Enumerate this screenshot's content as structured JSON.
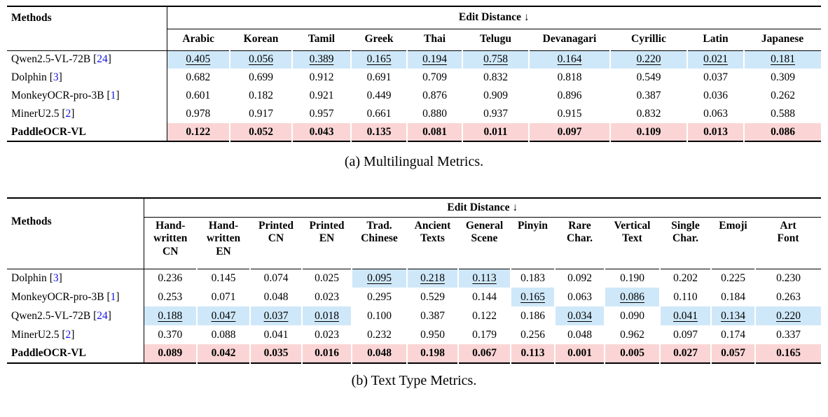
{
  "colors": {
    "second_best_bg": "#cfe8f9",
    "best_bg": "#fbd5d5",
    "citation": "#1212e8"
  },
  "tables": [
    {
      "caption": "(a) Multilingual Metrics.",
      "methods_header": "Methods",
      "group_header": "Edit Distance ↓",
      "columns": [
        [
          "Arabic"
        ],
        [
          "Korean"
        ],
        [
          "Tamil"
        ],
        [
          "Greek"
        ],
        [
          "Thai"
        ],
        [
          "Telugu"
        ],
        [
          "Devanagari"
        ],
        [
          "Cyrillic"
        ],
        [
          "Latin"
        ],
        [
          "Japanese"
        ]
      ],
      "rows": [
        {
          "method": "Qwen2.5-VL-72B",
          "cite": "24",
          "bold": false,
          "cells": [
            {
              "v": "0.405",
              "s": "2"
            },
            {
              "v": "0.056",
              "s": "2"
            },
            {
              "v": "0.389",
              "s": "2"
            },
            {
              "v": "0.165",
              "s": "2"
            },
            {
              "v": "0.194",
              "s": "2"
            },
            {
              "v": "0.758",
              "s": "2"
            },
            {
              "v": "0.164",
              "s": "2"
            },
            {
              "v": "0.220",
              "s": "2"
            },
            {
              "v": "0.021",
              "s": "2"
            },
            {
              "v": "0.181",
              "s": "2"
            }
          ]
        },
        {
          "method": "Dolphin",
          "cite": "3",
          "bold": false,
          "cells": [
            {
              "v": "0.682"
            },
            {
              "v": "0.699"
            },
            {
              "v": "0.912"
            },
            {
              "v": "0.691"
            },
            {
              "v": "0.709"
            },
            {
              "v": "0.832"
            },
            {
              "v": "0.818"
            },
            {
              "v": "0.549"
            },
            {
              "v": "0.037"
            },
            {
              "v": "0.309"
            }
          ]
        },
        {
          "method": "MonkeyOCR-pro-3B",
          "cite": "1",
          "bold": false,
          "cells": [
            {
              "v": "0.601"
            },
            {
              "v": "0.182"
            },
            {
              "v": "0.921"
            },
            {
              "v": "0.449"
            },
            {
              "v": "0.876"
            },
            {
              "v": "0.909"
            },
            {
              "v": "0.896"
            },
            {
              "v": "0.387"
            },
            {
              "v": "0.036"
            },
            {
              "v": "0.262"
            }
          ]
        },
        {
          "method": "MinerU2.5",
          "cite": "2",
          "bold": false,
          "cells": [
            {
              "v": "0.978"
            },
            {
              "v": "0.917"
            },
            {
              "v": "0.957"
            },
            {
              "v": "0.661"
            },
            {
              "v": "0.880"
            },
            {
              "v": "0.937"
            },
            {
              "v": "0.915"
            },
            {
              "v": "0.832"
            },
            {
              "v": "0.063"
            },
            {
              "v": "0.588"
            }
          ]
        },
        {
          "method": "PaddleOCR-VL",
          "cite": null,
          "bold": true,
          "cells": [
            {
              "v": "0.122",
              "s": "1"
            },
            {
              "v": "0.052",
              "s": "1"
            },
            {
              "v": "0.043",
              "s": "1"
            },
            {
              "v": "0.135",
              "s": "1"
            },
            {
              "v": "0.081",
              "s": "1"
            },
            {
              "v": "0.011",
              "s": "1"
            },
            {
              "v": "0.097",
              "s": "1"
            },
            {
              "v": "0.109",
              "s": "1"
            },
            {
              "v": "0.013",
              "s": "1"
            },
            {
              "v": "0.086",
              "s": "1"
            }
          ]
        }
      ]
    },
    {
      "caption": "(b) Text Type Metrics.",
      "methods_header": "Methods",
      "group_header": "Edit Distance ↓",
      "columns": [
        [
          "Hand-",
          "written",
          "CN"
        ],
        [
          "Hand-",
          "written",
          "EN"
        ],
        [
          "Printed",
          "CN"
        ],
        [
          "Printed",
          "EN"
        ],
        [
          "Trad.",
          "Chinese"
        ],
        [
          "Ancient",
          "Texts"
        ],
        [
          "General",
          "Scene"
        ],
        [
          "Pinyin"
        ],
        [
          "Rare",
          "Char."
        ],
        [
          "Vertical",
          "Text"
        ],
        [
          "Single",
          "Char."
        ],
        [
          "Emoji"
        ],
        [
          "Art",
          "Font"
        ]
      ],
      "rows": [
        {
          "method": "Dolphin",
          "cite": "3",
          "bold": false,
          "cells": [
            {
              "v": "0.236"
            },
            {
              "v": "0.145"
            },
            {
              "v": "0.074"
            },
            {
              "v": "0.025"
            },
            {
              "v": "0.095",
              "s": "2"
            },
            {
              "v": "0.218",
              "s": "2"
            },
            {
              "v": "0.113",
              "s": "2"
            },
            {
              "v": "0.183"
            },
            {
              "v": "0.092"
            },
            {
              "v": "0.190"
            },
            {
              "v": "0.202"
            },
            {
              "v": "0.225"
            },
            {
              "v": "0.230"
            }
          ]
        },
        {
          "method": "MonkeyOCR-pro-3B",
          "cite": "1",
          "bold": false,
          "cells": [
            {
              "v": "0.253"
            },
            {
              "v": "0.071"
            },
            {
              "v": "0.048"
            },
            {
              "v": "0.023"
            },
            {
              "v": "0.295"
            },
            {
              "v": "0.529"
            },
            {
              "v": "0.144"
            },
            {
              "v": "0.165",
              "s": "2"
            },
            {
              "v": "0.063"
            },
            {
              "v": "0.086",
              "s": "2"
            },
            {
              "v": "0.110"
            },
            {
              "v": "0.184"
            },
            {
              "v": "0.263"
            }
          ]
        },
        {
          "method": "Qwen2.5-VL-72B",
          "cite": "24",
          "bold": false,
          "cells": [
            {
              "v": "0.188",
              "s": "2"
            },
            {
              "v": "0.047",
              "s": "2"
            },
            {
              "v": "0.037",
              "s": "2"
            },
            {
              "v": "0.018",
              "s": "2"
            },
            {
              "v": "0.100"
            },
            {
              "v": "0.387"
            },
            {
              "v": "0.122"
            },
            {
              "v": "0.186"
            },
            {
              "v": "0.034",
              "s": "2"
            },
            {
              "v": "0.090"
            },
            {
              "v": "0.041",
              "s": "2"
            },
            {
              "v": "0.134",
              "s": "2"
            },
            {
              "v": "0.220",
              "s": "2"
            }
          ]
        },
        {
          "method": "MinerU2.5",
          "cite": "2",
          "bold": false,
          "cells": [
            {
              "v": "0.370"
            },
            {
              "v": "0.088"
            },
            {
              "v": "0.041"
            },
            {
              "v": "0.023"
            },
            {
              "v": "0.232"
            },
            {
              "v": "0.950"
            },
            {
              "v": "0.179"
            },
            {
              "v": "0.256"
            },
            {
              "v": "0.048"
            },
            {
              "v": "0.962"
            },
            {
              "v": "0.097"
            },
            {
              "v": "0.174"
            },
            {
              "v": "0.337"
            }
          ]
        },
        {
          "method": "PaddleOCR-VL",
          "cite": null,
          "bold": true,
          "cells": [
            {
              "v": "0.089",
              "s": "1"
            },
            {
              "v": "0.042",
              "s": "1"
            },
            {
              "v": "0.035",
              "s": "1"
            },
            {
              "v": "0.016",
              "s": "1"
            },
            {
              "v": "0.048",
              "s": "1"
            },
            {
              "v": "0.198",
              "s": "1"
            },
            {
              "v": "0.067",
              "s": "1"
            },
            {
              "v": "0.113",
              "s": "1"
            },
            {
              "v": "0.001",
              "s": "1"
            },
            {
              "v": "0.005",
              "s": "1"
            },
            {
              "v": "0.027",
              "s": "1"
            },
            {
              "v": "0.057",
              "s": "1"
            },
            {
              "v": "0.165",
              "s": "1"
            }
          ]
        }
      ]
    }
  ]
}
